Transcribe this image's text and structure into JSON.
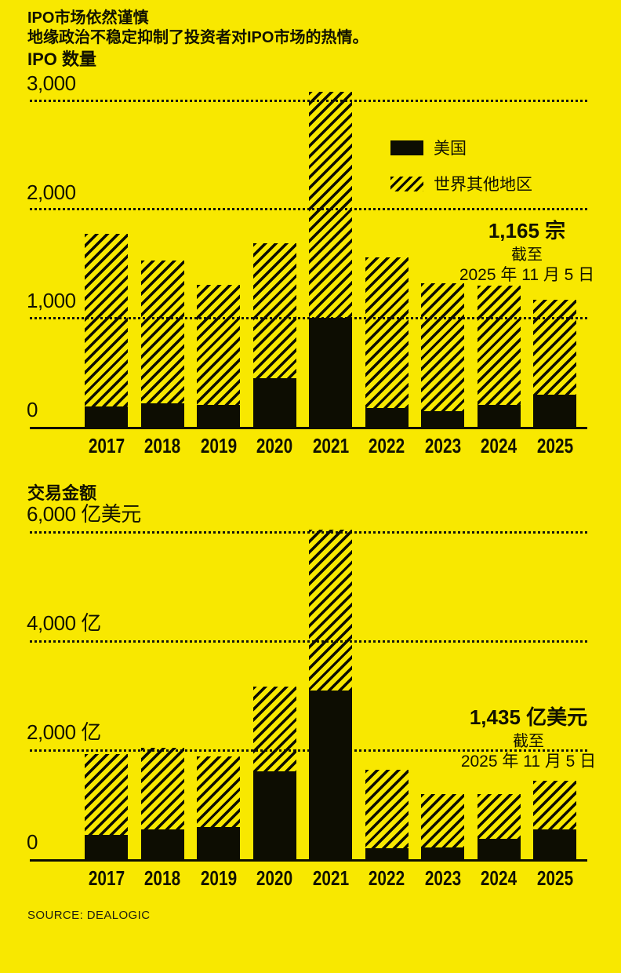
{
  "header": {
    "title": "IPO市场依然谨慎",
    "subtitle": "地缘政治不稳定抑制了投资者对IPO市场的热情。"
  },
  "legend": {
    "us_label": "美国",
    "row_label": "世界其他地区"
  },
  "footer": {
    "source": "SOURCE: DEALOGIC"
  },
  "colors": {
    "background": "#F8E800",
    "bar": "#0D0D02",
    "text": "#121200"
  },
  "chart_data": [
    {
      "type": "bar",
      "stacked": true,
      "title": "IPO 数量",
      "unit": "宗",
      "grid": "dotted-horizontal",
      "legend_position": "top-right",
      "categories": [
        "2017",
        "2018",
        "2019",
        "2020",
        "2021",
        "2022",
        "2023",
        "2024",
        "2025"
      ],
      "series": [
        {
          "name": "美国",
          "pattern": "solid-black",
          "values": [
            185,
            220,
            205,
            445,
            1000,
            170,
            145,
            200,
            295
          ]
        },
        {
          "name": "世界其他地区",
          "pattern": "diagonal-hatch",
          "values": [
            1590,
            1310,
            1100,
            1245,
            2080,
            1390,
            1175,
            1100,
            870
          ]
        }
      ],
      "totals": [
        1775,
        1530,
        1305,
        1690,
        3080,
        1560,
        1320,
        1300,
        1165
      ],
      "ylim": [
        0,
        3000
      ],
      "yticks": [
        {
          "value": 0,
          "label": "0"
        },
        {
          "value": 1000,
          "label": "1,000"
        },
        {
          "value": 2000,
          "label": "2,000"
        },
        {
          "value": 3000,
          "label": "3,000"
        }
      ],
      "annotation": {
        "headline": "1,165 宗",
        "line2": "截至",
        "line3": "2025 年 11 月 5 日"
      }
    },
    {
      "type": "bar",
      "stacked": true,
      "title": "交易金额",
      "unit": "亿美元",
      "grid": "dotted-horizontal",
      "legend_position": "none",
      "categories": [
        "2017",
        "2018",
        "2019",
        "2020",
        "2021",
        "2022",
        "2023",
        "2024",
        "2025"
      ],
      "series": [
        {
          "name": "美国",
          "pattern": "solid-black",
          "values": [
            450,
            540,
            585,
            1610,
            3100,
            200,
            215,
            370,
            540
          ]
        },
        {
          "name": "世界其他地区",
          "pattern": "diagonal-hatch",
          "values": [
            1480,
            1500,
            1305,
            1560,
            2950,
            1440,
            975,
            830,
            895
          ]
        }
      ],
      "totals": [
        1930,
        2040,
        1890,
        3170,
        6050,
        1640,
        1190,
        1200,
        1435
      ],
      "ylim": [
        0,
        6000
      ],
      "yticks": [
        {
          "value": 0,
          "label": "0"
        },
        {
          "value": 2000,
          "label": "2,000 亿"
        },
        {
          "value": 4000,
          "label": "4,000 亿"
        },
        {
          "value": 6000,
          "label": "6,000 亿美元"
        }
      ],
      "annotation": {
        "headline": "1,435 亿美元",
        "line2": "截至",
        "line3": "2025 年 11 月 5 日"
      }
    }
  ]
}
